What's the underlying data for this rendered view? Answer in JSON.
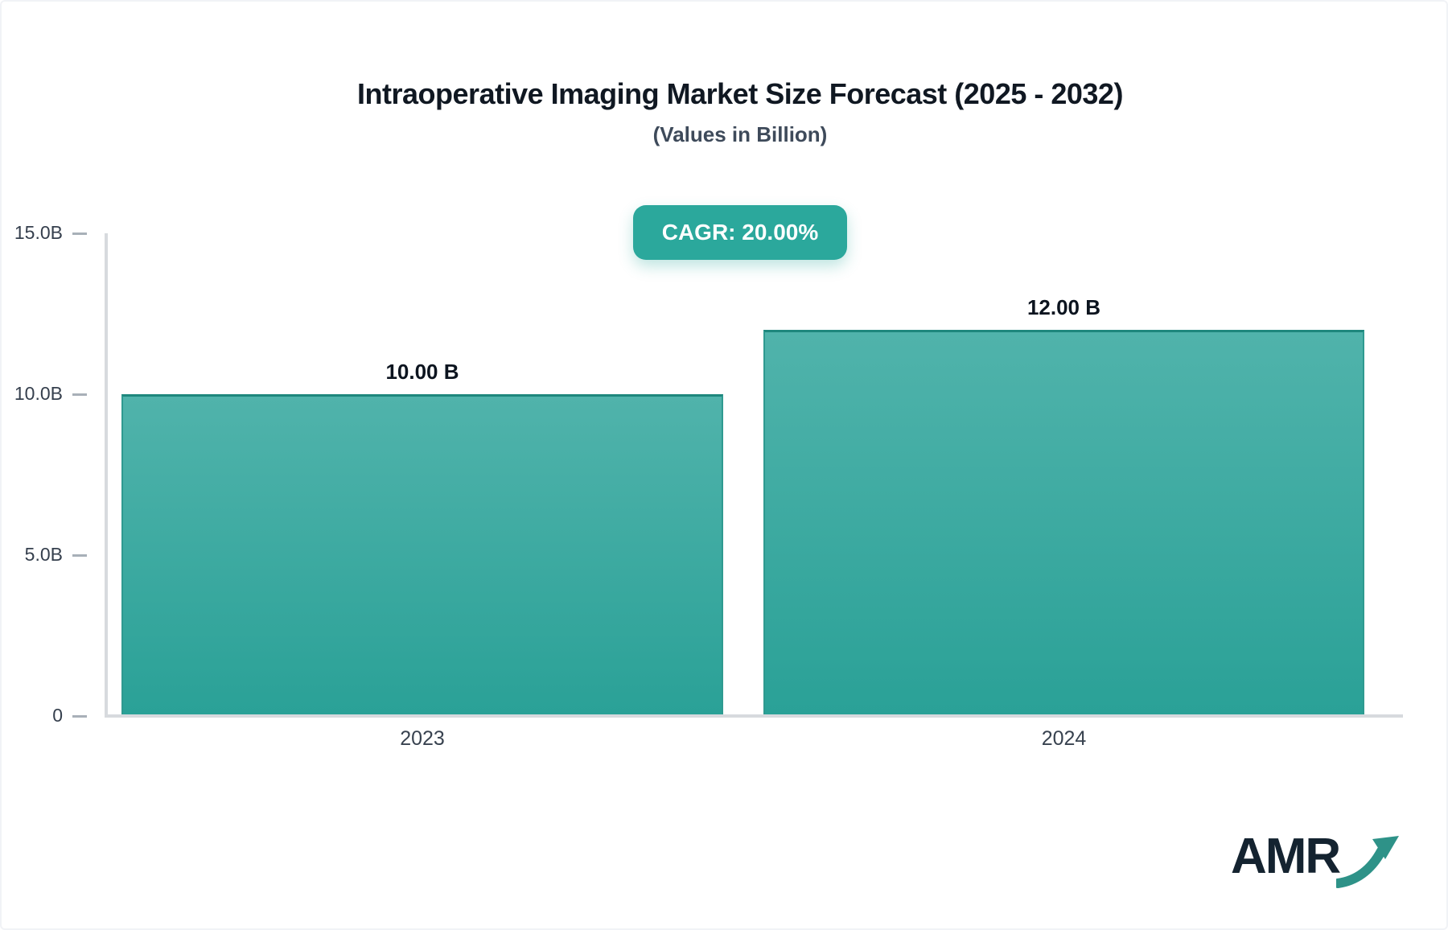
{
  "header": {
    "title": "Intraoperative Imaging Market Size Forecast (2025 - 2032)",
    "subtitle": "(Values in Billion)",
    "cagr_badge": "CAGR: 20.00%"
  },
  "chart_data": {
    "type": "bar",
    "title": "Intraoperative Imaging Market Size Forecast (2025 - 2032)",
    "subtitle": "(Values in Billion)",
    "annotation": "CAGR: 20.00%",
    "categories": [
      "2023",
      "2024"
    ],
    "values": [
      10.0,
      12.0
    ],
    "value_labels": [
      "10.00 B",
      "12.00 B"
    ],
    "unit": "Billion",
    "ylim": [
      0,
      15
    ],
    "yticks": [
      0,
      5,
      10,
      15
    ],
    "ytick_labels": [
      "0",
      "5.0B",
      "10.0B",
      "15.0B"
    ],
    "grid": false,
    "legend": false,
    "bar_fill_top": "#50B3AB",
    "bar_fill_bottom": "#2AA197",
    "bar_stroke": "#1E877D"
  },
  "colors": {
    "accent_teal": "#2BA89C",
    "axis_line": "#D7DADE",
    "title_text": "#101822",
    "subtitle_text": "#3E4A5A",
    "tick_text": "#353F4D"
  },
  "logo": {
    "text": "AMR"
  }
}
